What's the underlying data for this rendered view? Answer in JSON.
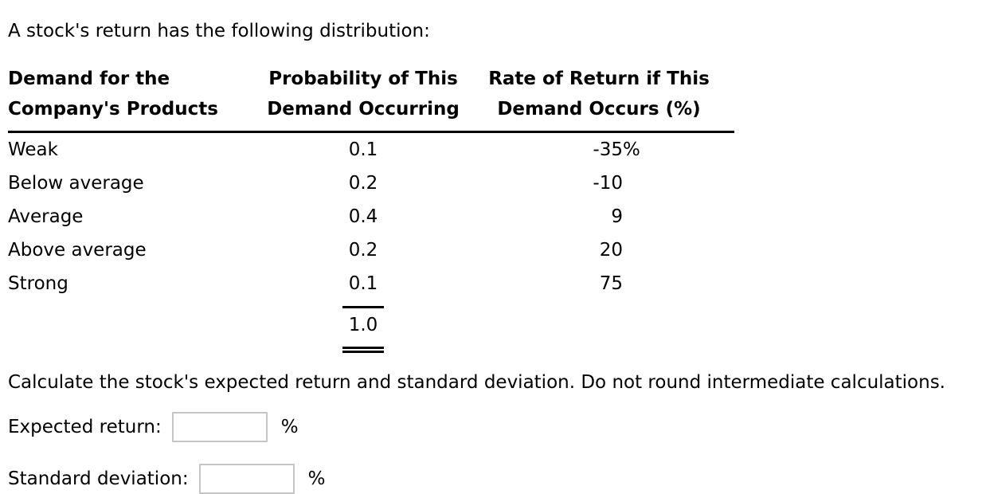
{
  "colors": {
    "text": "#000000",
    "background": "#ffffff",
    "input_border": "#c6c6c6",
    "rule": "#000000"
  },
  "intro": "A stock's return has the following distribution:",
  "table": {
    "columns": [
      {
        "line1": "Demand for the",
        "line2": "Company's Products"
      },
      {
        "line1": "Probability of This",
        "line2": "Demand Occurring"
      },
      {
        "line1": "Rate of Return if This",
        "line2": "Demand Occurs (%)"
      }
    ],
    "rows": [
      {
        "demand": "Weak",
        "probability": "0.1",
        "rate_value": "-35",
        "rate_suffix": "%"
      },
      {
        "demand": "Below average",
        "probability": "0.2",
        "rate_value": "-10",
        "rate_suffix": ""
      },
      {
        "demand": "Average",
        "probability": "0.4",
        "rate_value": "9",
        "rate_suffix": ""
      },
      {
        "demand": "Above average",
        "probability": "0.2",
        "rate_value": "20",
        "rate_suffix": ""
      },
      {
        "demand": "Strong",
        "probability": "0.1",
        "rate_value": "75",
        "rate_suffix": ""
      }
    ],
    "total_probability": "1.0"
  },
  "instruction": "Calculate the stock's expected return and standard deviation. Do not round intermediate calculations.",
  "fields": [
    {
      "label": "Expected return:",
      "value": "",
      "suffix": "%"
    },
    {
      "label": "Standard deviation:",
      "value": "",
      "suffix": "%"
    }
  ]
}
